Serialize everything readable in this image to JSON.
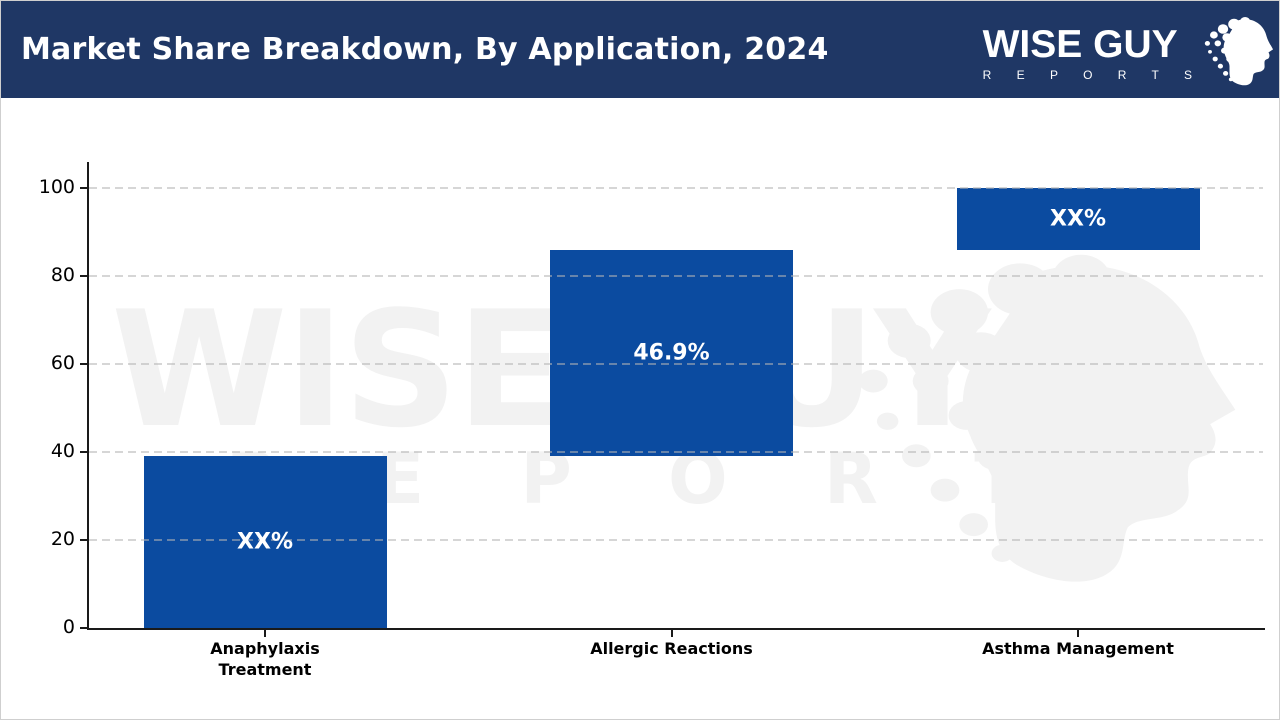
{
  "header": {
    "title": "Market Share Breakdown, By Application, 2024",
    "bg_color": "#1F3765",
    "logo": {
      "line1": "WISE GUY",
      "line2": "R E P O R T S"
    }
  },
  "watermark": {
    "line1": "WISE GUY",
    "line2": "R E P O R T S"
  },
  "chart_data": {
    "type": "bar",
    "subtype": "floating-segment-waterfall",
    "title": "Market Share Breakdown, By Application, 2024",
    "categories": [
      "Anaphylaxis\nTreatment",
      "Allergic Reactions",
      "Asthma Management"
    ],
    "segments": [
      {
        "category": "Anaphylaxis Treatment",
        "start": 0,
        "end": 39,
        "label": "XX%"
      },
      {
        "category": "Allergic Reactions",
        "start": 39,
        "end": 85.9,
        "label": "46.9%"
      },
      {
        "category": "Asthma Management",
        "start": 85.9,
        "end": 100,
        "label": "XX%"
      }
    ],
    "ylim": [
      0,
      100
    ],
    "yticks": [
      0,
      20,
      40,
      60,
      80,
      100
    ],
    "xlabel": "",
    "ylabel": "",
    "legend": "none",
    "grid": {
      "horizontal": true,
      "style": "dashed",
      "drawn_above_bars": true
    },
    "colors": {
      "bar": "#0B4BA0",
      "bar_label": "#FFFFFF",
      "axis": "#1A1A1A",
      "grid": "#DDDDDD",
      "watermark": "#F2F2F2"
    }
  }
}
